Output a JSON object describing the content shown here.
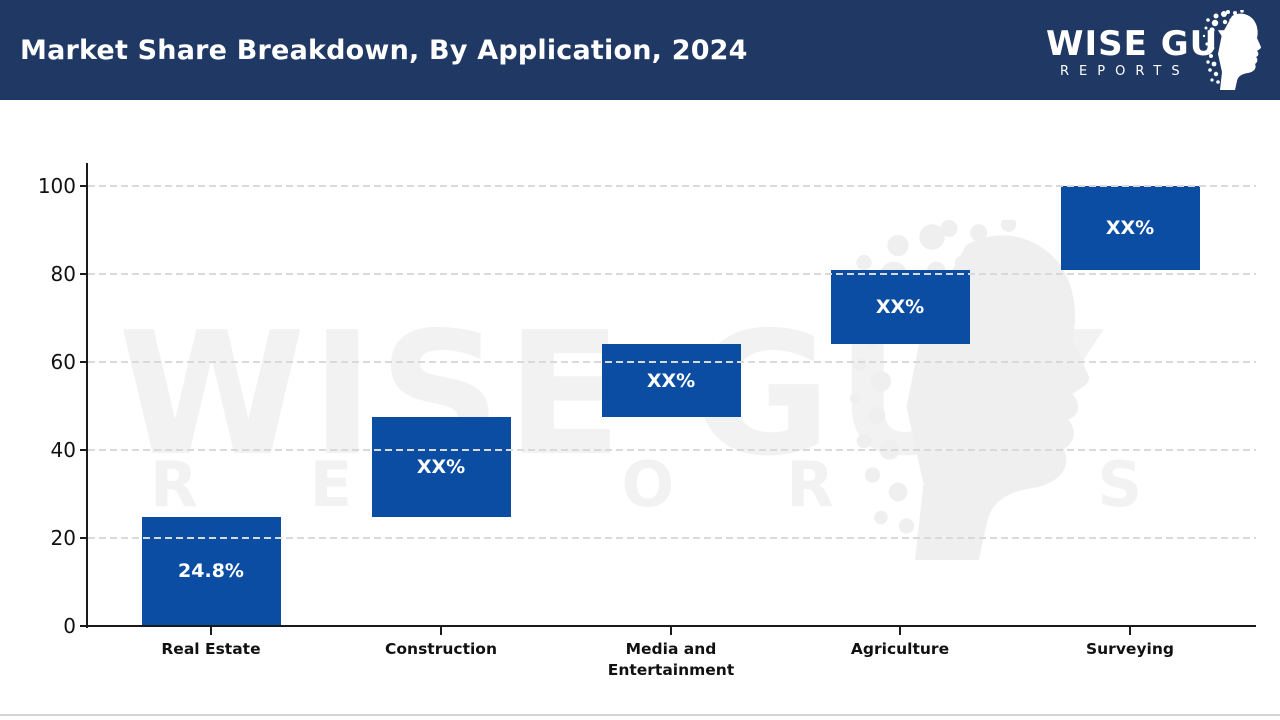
{
  "header": {
    "title": "Market Share Breakdown, By Application, 2024",
    "bg_color": "#1F3864",
    "logo": {
      "line1": "WISE GUY",
      "line2": "REPORTS"
    }
  },
  "watermark": {
    "line1": "WISE GUY",
    "line2": "REPORTS",
    "color": "#F2F2F2"
  },
  "chart_data": {
    "type": "bar",
    "subtype": "waterfall",
    "title": "Market Share Breakdown, By Application, 2024",
    "xlabel": "",
    "ylabel": "",
    "ylim": [
      0,
      100
    ],
    "y_ticks": [
      0,
      20,
      40,
      60,
      80,
      100
    ],
    "grid": "horizontal-dashed",
    "bar_color": "#0B4DA2",
    "grid_color": "#D9D9D9",
    "categories": [
      "Real Estate",
      "Construction",
      "Media and Entertainment",
      "Agriculture",
      "Surveying"
    ],
    "category_lines": [
      [
        "Real Estate"
      ],
      [
        "Construction"
      ],
      [
        "Media and",
        "Entertainment"
      ],
      [
        "Agriculture"
      ],
      [
        "Surveying"
      ]
    ],
    "segments": [
      {
        "category": "Real Estate",
        "start": 0,
        "end": 24.8,
        "label": "24.8%"
      },
      {
        "category": "Construction",
        "start": 24.8,
        "end": 47.5,
        "label": "XX%"
      },
      {
        "category": "Media and Entertainment",
        "start": 47.5,
        "end": 64,
        "label": "XX%"
      },
      {
        "category": "Agriculture",
        "start": 64,
        "end": 81,
        "label": "XX%"
      },
      {
        "category": "Surveying",
        "start": 81,
        "end": 100,
        "label": "XX%"
      }
    ]
  }
}
